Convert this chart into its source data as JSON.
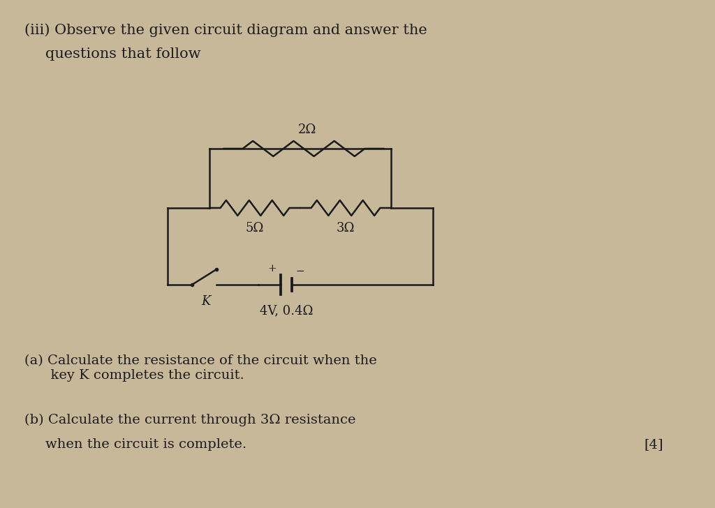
{
  "title": "(iii) Observe the given circuit diagram and answer the\n      questions that follow",
  "background_color": "#c8b89a",
  "text_color": "#1a1a1a",
  "question_a": "(a) Calculate the resistance of the circuit when the\n      key K completes the circuit.",
  "question_b": "(b) Calculate the current through 3Ω resistance\n      when the circuit is complete.",
  "mark": "[4]",
  "resistor_2ohm": "2Ω",
  "resistor_5ohm": "5Ω",
  "resistor_3ohm": "3Ω",
  "battery_label": "4V, 0.4Ω",
  "key_label": "K",
  "font_size_title": 15,
  "font_size_question": 14,
  "font_size_label": 13,
  "line_color": "#1a1a1a",
  "line_width": 1.8
}
